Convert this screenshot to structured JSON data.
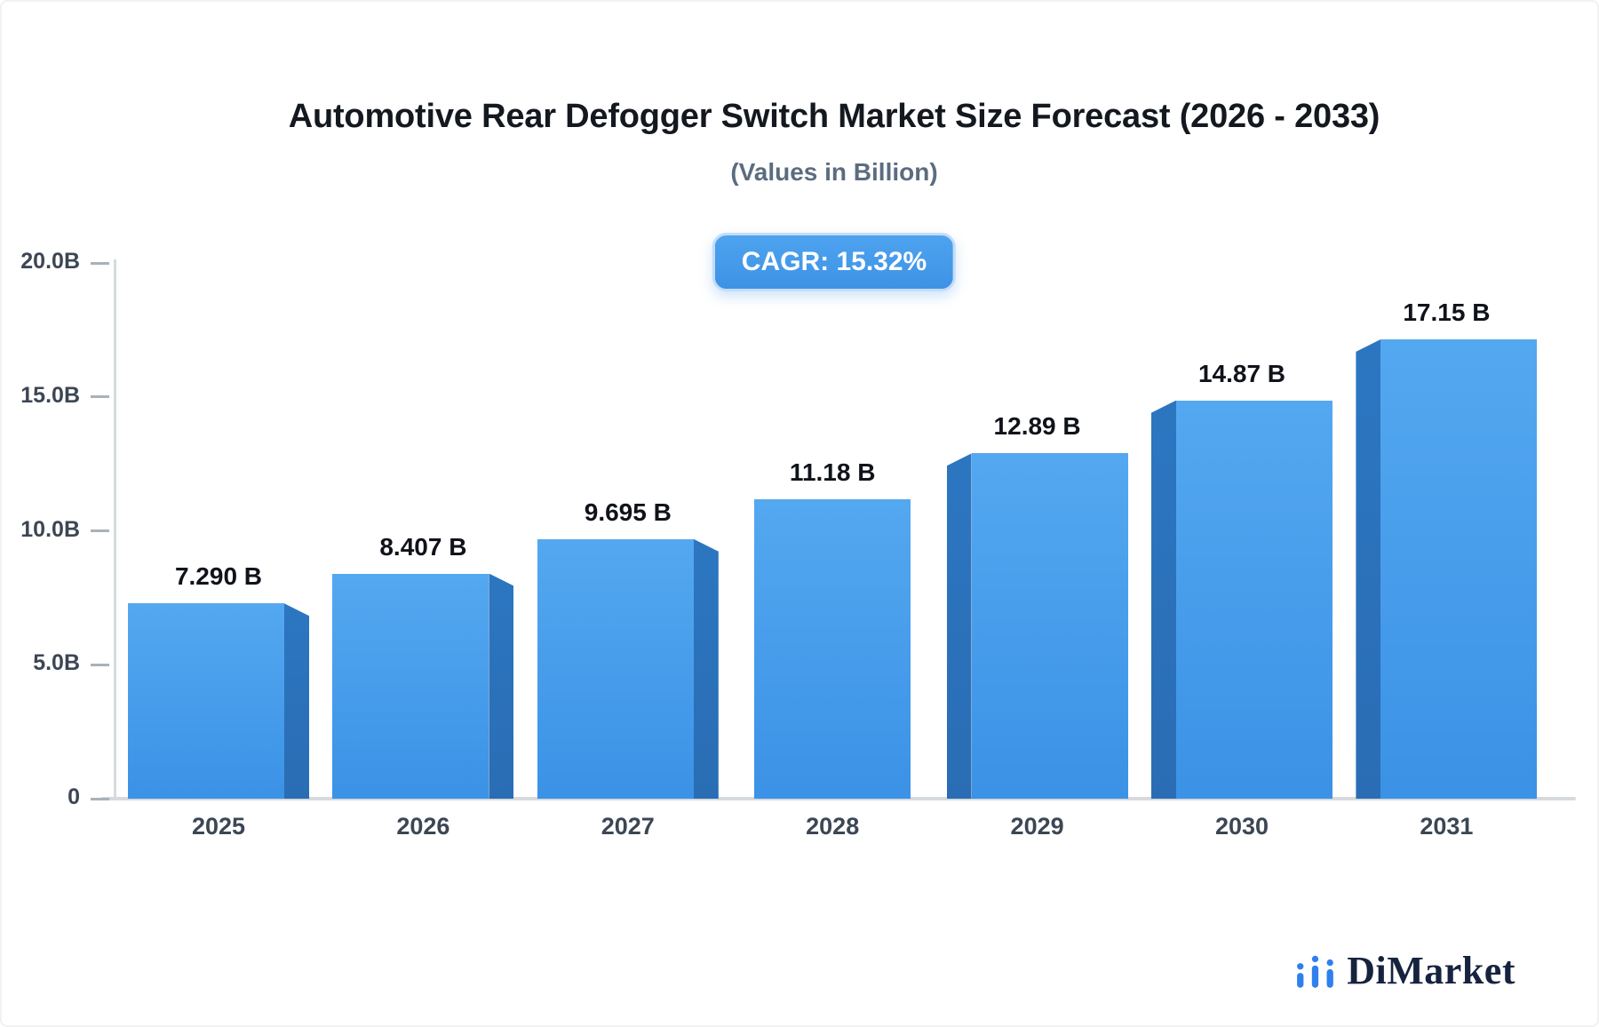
{
  "chart_data": {
    "type": "bar",
    "title": "Automotive Rear Defogger Switch Market Size Forecast (2026 - 2033)",
    "subtitle": "(Values in Billion)",
    "cagr": "CAGR: 15.32%",
    "categories": [
      "2025",
      "2026",
      "2027",
      "2028",
      "2029",
      "2030",
      "2031"
    ],
    "values": [
      7.29,
      8.407,
      9.695,
      11.18,
      12.89,
      14.87,
      17.15
    ],
    "value_labels": [
      "7.290 B",
      "8.407 B",
      "9.695 B",
      "11.18 B",
      "12.89 B",
      "14.87 B",
      "17.15 B"
    ],
    "xlabel": "",
    "ylabel": "",
    "ylim": [
      0,
      20
    ],
    "yticks": [
      {
        "value": 0,
        "label": "0"
      },
      {
        "value": 5,
        "label": "5.0B"
      },
      {
        "value": 10,
        "label": "10.0B"
      },
      {
        "value": 15,
        "label": "15.0B"
      },
      {
        "value": 20,
        "label": "20.0B"
      }
    ],
    "grid": false,
    "legend": false
  },
  "logo": {
    "text": "DiMarket",
    "icon": "bar-chart-logo-icon"
  },
  "colors": {
    "bar_top": "#54a8f0",
    "bar_bottom": "#3b92e6",
    "bar_side": "#2c76c1",
    "badge_bg_top": "#4ea3ef",
    "badge_bg_bottom": "#3e92e5",
    "badge_border": "#c2ddf8",
    "badge_text": "#ffffff",
    "title_text": "#14181f",
    "subtitle_text": "#5b6c80",
    "axis_line": "#d6dadf",
    "tick_text": "#3c4654",
    "value_label_text": "#10131a",
    "logo_icon": "#2f80ed",
    "logo_text": "#16233f"
  }
}
